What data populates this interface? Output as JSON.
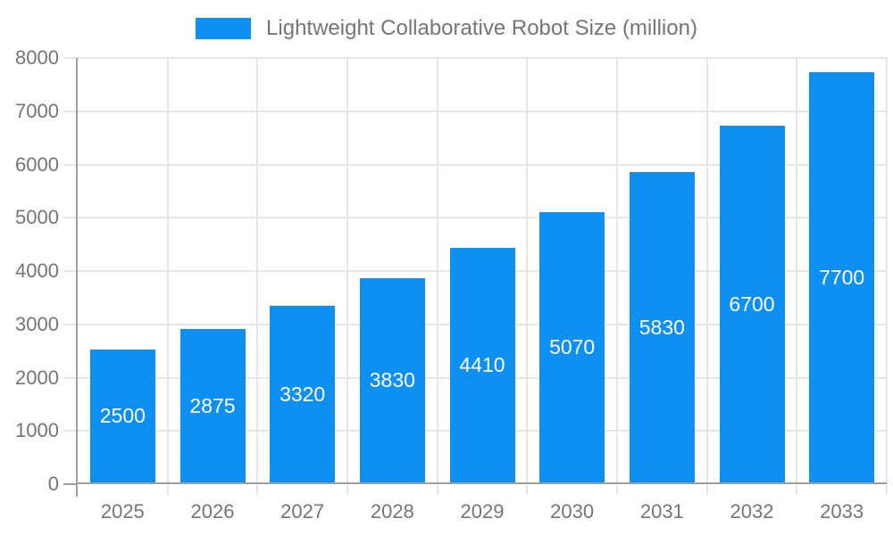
{
  "chart_data": {
    "type": "bar",
    "title": "Lightweight Collaborative Robot Size (million)",
    "categories": [
      "2025",
      "2026",
      "2027",
      "2028",
      "2029",
      "2030",
      "2031",
      "2032",
      "2033"
    ],
    "values": [
      2500,
      2875,
      3320,
      3830,
      4410,
      5070,
      5830,
      6700,
      7700
    ],
    "xlabel": "",
    "ylabel": "",
    "ylim": [
      0,
      8000
    ],
    "ytick_step": 1000,
    "ytick_labels": [
      "0",
      "1000",
      "2000",
      "3000",
      "4000",
      "5000",
      "6000",
      "7000",
      "8000"
    ],
    "grid": true,
    "legend_position": "top",
    "bar_value_labels": [
      "2500",
      "2875",
      "3320",
      "3830",
      "4410",
      "5070",
      "5830",
      "6700",
      "7700"
    ],
    "colors": {
      "bar": "#0e90f2",
      "bar_label": "#ffffff",
      "axis_text": "#757575",
      "axis_line": "#9e9e9e",
      "gridline": "#e6e6e6",
      "background": "#ffffff"
    }
  }
}
